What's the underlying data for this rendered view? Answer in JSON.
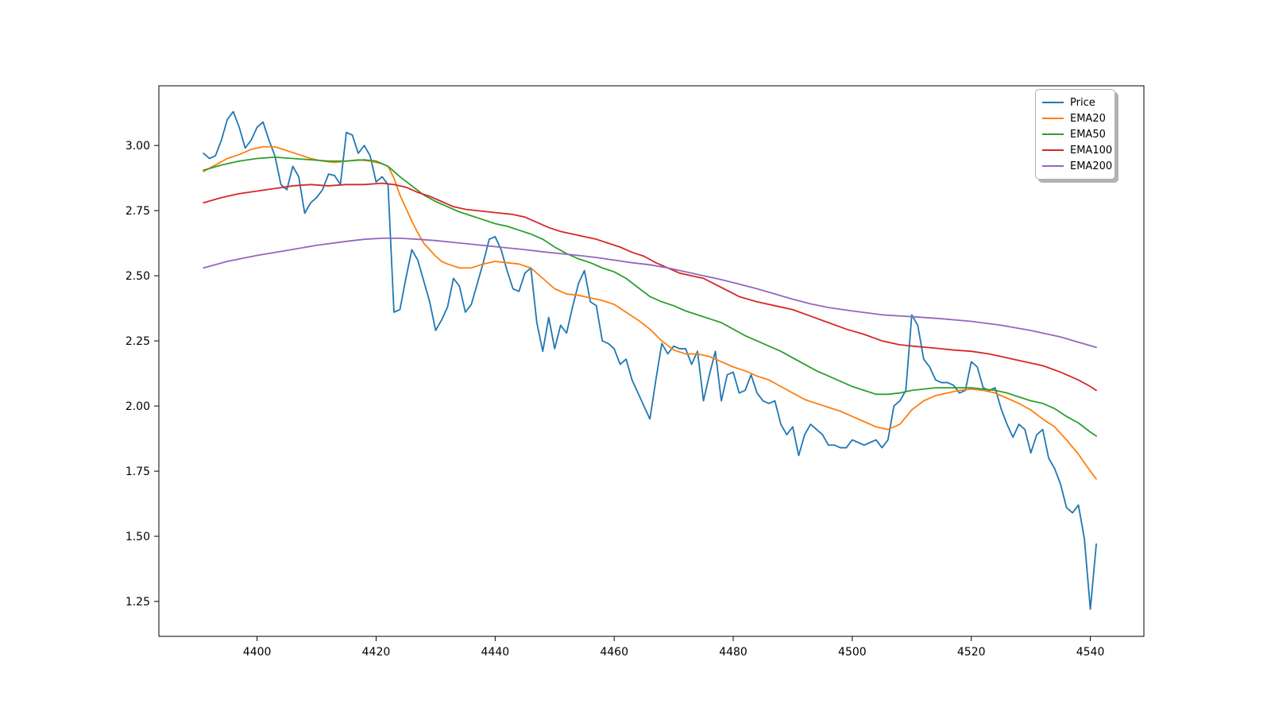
{
  "figure": {
    "background_color": "#ffffff",
    "spine_color": "#000000",
    "tick_label_color": "#000000"
  },
  "legend": {
    "position": "upper-right",
    "entries": [
      "Price",
      "EMA20",
      "EMA50",
      "EMA100",
      "EMA200"
    ]
  },
  "chart_data": {
    "type": "line",
    "title": "",
    "xlabel": "",
    "ylabel": "",
    "grid": false,
    "xlim": [
      4383.5,
      4549.0
    ],
    "ylim": [
      1.116,
      3.229
    ],
    "x_ticks": [
      4400,
      4420,
      4440,
      4460,
      4480,
      4500,
      4520,
      4540
    ],
    "y_ticks": [
      1.25,
      1.5,
      1.75,
      2.0,
      2.25,
      2.5,
      2.75,
      3.0
    ],
    "y_tick_decimals": 2,
    "series": [
      {
        "name": "Price",
        "color": "#1f77b4",
        "x_start": 4391,
        "x_step": 1,
        "values": [
          2.97,
          2.95,
          2.96,
          3.02,
          3.1,
          3.13,
          3.07,
          2.99,
          3.02,
          3.07,
          3.09,
          3.02,
          2.96,
          2.85,
          2.83,
          2.92,
          2.88,
          2.74,
          2.78,
          2.8,
          2.83,
          2.89,
          2.885,
          2.85,
          3.05,
          3.04,
          2.97,
          3.0,
          2.96,
          2.86,
          2.88,
          2.85,
          2.36,
          2.37,
          2.49,
          2.6,
          2.56,
          2.48,
          2.4,
          2.29,
          2.33,
          2.38,
          2.49,
          2.46,
          2.36,
          2.39,
          2.47,
          2.55,
          2.64,
          2.65,
          2.6,
          2.52,
          2.45,
          2.44,
          2.51,
          2.53,
          2.32,
          2.21,
          2.34,
          2.22,
          2.31,
          2.28,
          2.38,
          2.47,
          2.52,
          2.4,
          2.385,
          2.25,
          2.24,
          2.22,
          2.16,
          2.18,
          2.1,
          2.05,
          2.0,
          1.95,
          2.1,
          2.24,
          2.2,
          2.23,
          2.22,
          2.22,
          2.16,
          2.21,
          2.02,
          2.12,
          2.21,
          2.02,
          2.12,
          2.13,
          2.05,
          2.06,
          2.12,
          2.05,
          2.02,
          2.01,
          2.02,
          1.93,
          1.89,
          1.92,
          1.81,
          1.89,
          1.93,
          1.91,
          1.89,
          1.85,
          1.85,
          1.84,
          1.84,
          1.87,
          1.86,
          1.85,
          1.86,
          1.87,
          1.84,
          1.87,
          2.0,
          2.02,
          2.06,
          2.35,
          2.31,
          2.18,
          2.15,
          2.1,
          2.09,
          2.09,
          2.08,
          2.05,
          2.06,
          2.17,
          2.15,
          2.07,
          2.06,
          2.07,
          1.99,
          1.93,
          1.88,
          1.93,
          1.91,
          1.82,
          1.89,
          1.91,
          1.8,
          1.76,
          1.7,
          1.61,
          1.59,
          1.62,
          1.49,
          1.22,
          1.47
        ]
      },
      {
        "name": "EMA20",
        "color": "#ff7f0e",
        "points": [
          [
            4391,
            2.9
          ],
          [
            4393,
            2.925
          ],
          [
            4395,
            2.95
          ],
          [
            4397,
            2.965
          ],
          [
            4399,
            2.985
          ],
          [
            4401,
            2.995
          ],
          [
            4403,
            2.995
          ],
          [
            4405,
            2.98
          ],
          [
            4407,
            2.965
          ],
          [
            4409,
            2.95
          ],
          [
            4411,
            2.94
          ],
          [
            4413,
            2.935
          ],
          [
            4415,
            2.94
          ],
          [
            4417,
            2.945
          ],
          [
            4419,
            2.94
          ],
          [
            4421,
            2.93
          ],
          [
            4422,
            2.92
          ],
          [
            4423,
            2.875
          ],
          [
            4424,
            2.81
          ],
          [
            4425,
            2.76
          ],
          [
            4426,
            2.71
          ],
          [
            4427,
            2.665
          ],
          [
            4428,
            2.625
          ],
          [
            4429,
            2.6
          ],
          [
            4430,
            2.575
          ],
          [
            4431,
            2.555
          ],
          [
            4432,
            2.545
          ],
          [
            4434,
            2.53
          ],
          [
            4436,
            2.53
          ],
          [
            4438,
            2.545
          ],
          [
            4440,
            2.555
          ],
          [
            4442,
            2.55
          ],
          [
            4444,
            2.545
          ],
          [
            4446,
            2.53
          ],
          [
            4448,
            2.49
          ],
          [
            4450,
            2.45
          ],
          [
            4452,
            2.43
          ],
          [
            4454,
            2.425
          ],
          [
            4456,
            2.415
          ],
          [
            4458,
            2.405
          ],
          [
            4460,
            2.39
          ],
          [
            4462,
            2.36
          ],
          [
            4464,
            2.33
          ],
          [
            4466,
            2.295
          ],
          [
            4468,
            2.25
          ],
          [
            4470,
            2.215
          ],
          [
            4472,
            2.2
          ],
          [
            4474,
            2.2
          ],
          [
            4476,
            2.19
          ],
          [
            4478,
            2.17
          ],
          [
            4480,
            2.15
          ],
          [
            4482,
            2.135
          ],
          [
            4484,
            2.115
          ],
          [
            4486,
            2.1
          ],
          [
            4488,
            2.075
          ],
          [
            4490,
            2.05
          ],
          [
            4492,
            2.025
          ],
          [
            4494,
            2.01
          ],
          [
            4496,
            1.995
          ],
          [
            4498,
            1.98
          ],
          [
            4500,
            1.96
          ],
          [
            4502,
            1.94
          ],
          [
            4504,
            1.92
          ],
          [
            4506,
            1.91
          ],
          [
            4508,
            1.93
          ],
          [
            4510,
            1.985
          ],
          [
            4512,
            2.02
          ],
          [
            4514,
            2.04
          ],
          [
            4516,
            2.05
          ],
          [
            4518,
            2.06
          ],
          [
            4520,
            2.065
          ],
          [
            4522,
            2.06
          ],
          [
            4524,
            2.05
          ],
          [
            4526,
            2.03
          ],
          [
            4528,
            2.01
          ],
          [
            4530,
            1.985
          ],
          [
            4532,
            1.95
          ],
          [
            4534,
            1.92
          ],
          [
            4536,
            1.87
          ],
          [
            4538,
            1.815
          ],
          [
            4540,
            1.75
          ],
          [
            4541,
            1.72
          ]
        ]
      },
      {
        "name": "EMA50",
        "color": "#2ca02c",
        "points": [
          [
            4391,
            2.905
          ],
          [
            4394,
            2.925
          ],
          [
            4397,
            2.94
          ],
          [
            4400,
            2.95
          ],
          [
            4403,
            2.955
          ],
          [
            4406,
            2.95
          ],
          [
            4409,
            2.945
          ],
          [
            4412,
            2.94
          ],
          [
            4415,
            2.94
          ],
          [
            4418,
            2.945
          ],
          [
            4420,
            2.94
          ],
          [
            4422,
            2.92
          ],
          [
            4424,
            2.88
          ],
          [
            4426,
            2.845
          ],
          [
            4428,
            2.81
          ],
          [
            4430,
            2.785
          ],
          [
            4432,
            2.765
          ],
          [
            4434,
            2.745
          ],
          [
            4436,
            2.73
          ],
          [
            4438,
            2.715
          ],
          [
            4440,
            2.7
          ],
          [
            4442,
            2.69
          ],
          [
            4444,
            2.675
          ],
          [
            4446,
            2.66
          ],
          [
            4448,
            2.64
          ],
          [
            4450,
            2.61
          ],
          [
            4452,
            2.585
          ],
          [
            4454,
            2.565
          ],
          [
            4456,
            2.55
          ],
          [
            4458,
            2.53
          ],
          [
            4460,
            2.515
          ],
          [
            4462,
            2.49
          ],
          [
            4464,
            2.455
          ],
          [
            4466,
            2.42
          ],
          [
            4468,
            2.4
          ],
          [
            4470,
            2.385
          ],
          [
            4472,
            2.365
          ],
          [
            4474,
            2.35
          ],
          [
            4476,
            2.335
          ],
          [
            4478,
            2.32
          ],
          [
            4480,
            2.295
          ],
          [
            4482,
            2.27
          ],
          [
            4484,
            2.25
          ],
          [
            4486,
            2.23
          ],
          [
            4488,
            2.21
          ],
          [
            4490,
            2.185
          ],
          [
            4492,
            2.16
          ],
          [
            4494,
            2.135
          ],
          [
            4496,
            2.115
          ],
          [
            4498,
            2.095
          ],
          [
            4500,
            2.075
          ],
          [
            4502,
            2.06
          ],
          [
            4504,
            2.045
          ],
          [
            4506,
            2.045
          ],
          [
            4508,
            2.05
          ],
          [
            4510,
            2.06
          ],
          [
            4512,
            2.065
          ],
          [
            4514,
            2.07
          ],
          [
            4517,
            2.07
          ],
          [
            4520,
            2.07
          ],
          [
            4522,
            2.065
          ],
          [
            4524,
            2.06
          ],
          [
            4526,
            2.05
          ],
          [
            4528,
            2.035
          ],
          [
            4530,
            2.02
          ],
          [
            4532,
            2.01
          ],
          [
            4534,
            1.99
          ],
          [
            4536,
            1.96
          ],
          [
            4538,
            1.935
          ],
          [
            4540,
            1.9
          ],
          [
            4541,
            1.885
          ]
        ]
      },
      {
        "name": "EMA100",
        "color": "#d62728",
        "points": [
          [
            4391,
            2.78
          ],
          [
            4394,
            2.8
          ],
          [
            4397,
            2.815
          ],
          [
            4400,
            2.825
          ],
          [
            4403,
            2.835
          ],
          [
            4406,
            2.845
          ],
          [
            4409,
            2.85
          ],
          [
            4412,
            2.845
          ],
          [
            4415,
            2.85
          ],
          [
            4418,
            2.85
          ],
          [
            4421,
            2.855
          ],
          [
            4423,
            2.85
          ],
          [
            4425,
            2.84
          ],
          [
            4427,
            2.82
          ],
          [
            4429,
            2.805
          ],
          [
            4431,
            2.785
          ],
          [
            4433,
            2.765
          ],
          [
            4435,
            2.755
          ],
          [
            4437,
            2.75
          ],
          [
            4439,
            2.745
          ],
          [
            4441,
            2.74
          ],
          [
            4443,
            2.735
          ],
          [
            4445,
            2.725
          ],
          [
            4447,
            2.705
          ],
          [
            4449,
            2.685
          ],
          [
            4451,
            2.67
          ],
          [
            4453,
            2.66
          ],
          [
            4455,
            2.65
          ],
          [
            4457,
            2.64
          ],
          [
            4459,
            2.625
          ],
          [
            4461,
            2.61
          ],
          [
            4463,
            2.59
          ],
          [
            4465,
            2.575
          ],
          [
            4467,
            2.55
          ],
          [
            4469,
            2.53
          ],
          [
            4471,
            2.51
          ],
          [
            4473,
            2.5
          ],
          [
            4475,
            2.49
          ],
          [
            4478,
            2.455
          ],
          [
            4481,
            2.42
          ],
          [
            4484,
            2.4
          ],
          [
            4487,
            2.385
          ],
          [
            4490,
            2.37
          ],
          [
            4493,
            2.345
          ],
          [
            4496,
            2.32
          ],
          [
            4499,
            2.295
          ],
          [
            4502,
            2.275
          ],
          [
            4505,
            2.25
          ],
          [
            4508,
            2.235
          ],
          [
            4511,
            2.228
          ],
          [
            4514,
            2.222
          ],
          [
            4517,
            2.215
          ],
          [
            4520,
            2.21
          ],
          [
            4523,
            2.2
          ],
          [
            4526,
            2.185
          ],
          [
            4529,
            2.17
          ],
          [
            4532,
            2.155
          ],
          [
            4535,
            2.13
          ],
          [
            4538,
            2.1
          ],
          [
            4540,
            2.075
          ],
          [
            4541,
            2.06
          ]
        ]
      },
      {
        "name": "EMA200",
        "color": "#9467bd",
        "points": [
          [
            4391,
            2.53
          ],
          [
            4395,
            2.555
          ],
          [
            4400,
            2.578
          ],
          [
            4405,
            2.597
          ],
          [
            4410,
            2.617
          ],
          [
            4415,
            2.632
          ],
          [
            4418,
            2.64
          ],
          [
            4421,
            2.644
          ],
          [
            4424,
            2.644
          ],
          [
            4427,
            2.64
          ],
          [
            4430,
            2.635
          ],
          [
            4433,
            2.628
          ],
          [
            4436,
            2.621
          ],
          [
            4439,
            2.614
          ],
          [
            4442,
            2.607
          ],
          [
            4445,
            2.6
          ],
          [
            4448,
            2.592
          ],
          [
            4451,
            2.585
          ],
          [
            4454,
            2.578
          ],
          [
            4457,
            2.57
          ],
          [
            4460,
            2.56
          ],
          [
            4463,
            2.55
          ],
          [
            4466,
            2.542
          ],
          [
            4469,
            2.53
          ],
          [
            4472,
            2.515
          ],
          [
            4475,
            2.5
          ],
          [
            4478,
            2.485
          ],
          [
            4481,
            2.468
          ],
          [
            4484,
            2.45
          ],
          [
            4487,
            2.43
          ],
          [
            4490,
            2.41
          ],
          [
            4493,
            2.392
          ],
          [
            4496,
            2.378
          ],
          [
            4500,
            2.365
          ],
          [
            4505,
            2.35
          ],
          [
            4510,
            2.343
          ],
          [
            4515,
            2.335
          ],
          [
            4520,
            2.325
          ],
          [
            4525,
            2.31
          ],
          [
            4530,
            2.29
          ],
          [
            4535,
            2.265
          ],
          [
            4538,
            2.245
          ],
          [
            4541,
            2.225
          ]
        ]
      }
    ]
  }
}
